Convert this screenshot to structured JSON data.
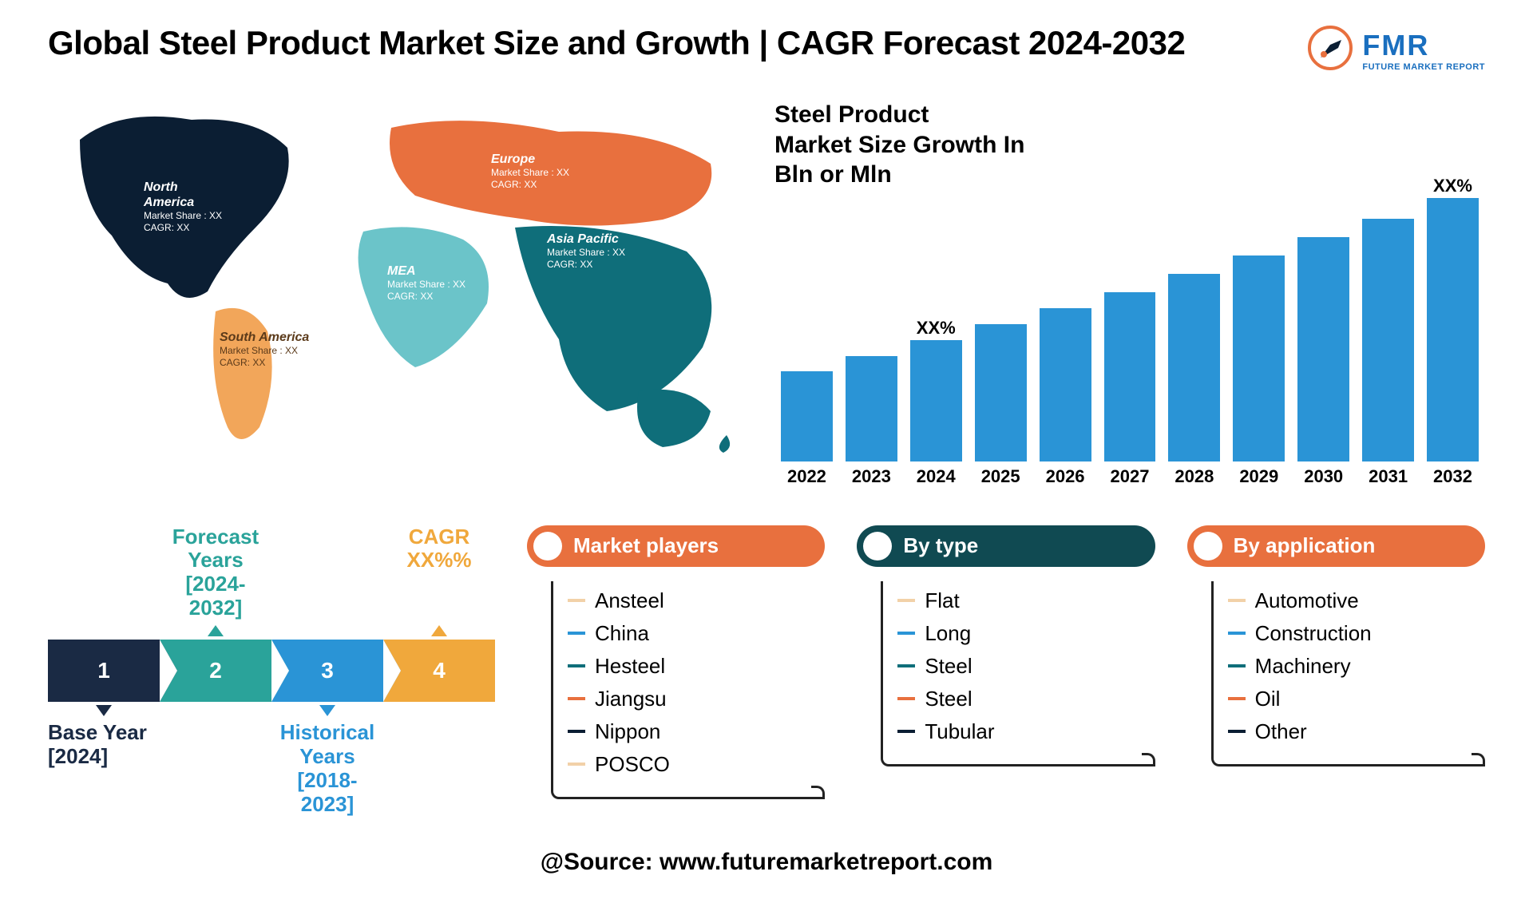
{
  "title": "Global Steel Product  Market Size and Growth | CAGR Forecast 2024-2032",
  "logo": {
    "fmr": "FMR",
    "sub": "FUTURE MARKET REPORT"
  },
  "colors": {
    "na": "#0b1e33",
    "sa": "#f2a65a",
    "eu": "#e8703e",
    "ap": "#0f6e7a",
    "mea": "#6bc4c9",
    "bar": "#2a94d6",
    "tl1": "#1a2a44",
    "tl2": "#2aa39a",
    "tl3": "#2a94d6",
    "tl4": "#f0a83c",
    "pill_players": "#e8703e",
    "pill_type": "#104a52",
    "pill_app": "#e8703e",
    "tick_blue": "#2a94d6",
    "tick_orange": "#e8703e",
    "tick_dark": "#0b1e33",
    "tick_teal": "#0f6e7a",
    "tick_light": "#f2d1a8"
  },
  "regions": {
    "na": {
      "name": "North\nAmerica",
      "share": "Market Share : XX",
      "cagr": "CAGR: XX"
    },
    "sa": {
      "name": "South America",
      "share": "Market Share : XX",
      "cagr": "CAGR: XX"
    },
    "eu": {
      "name": "Europe",
      "share": "Market Share : XX",
      "cagr": "CAGR: XX"
    },
    "ap": {
      "name": "Asia Pacific",
      "share": "Market Share : XX",
      "cagr": "CAGR: XX"
    },
    "mea": {
      "name": "MEA",
      "share": "Market Share : XX",
      "cagr": "CAGR: XX"
    }
  },
  "chart": {
    "title": "Steel Product\nMarket Size Growth In\nBln or Mln",
    "years": [
      "2022",
      "2023",
      "2024",
      "2025",
      "2026",
      "2027",
      "2028",
      "2029",
      "2030",
      "2031",
      "2032"
    ],
    "heights_pct": [
      34,
      40,
      46,
      52,
      58,
      64,
      71,
      78,
      85,
      92,
      100
    ],
    "note_2024": "XX%",
    "note_2032": "XX%"
  },
  "timeline": {
    "forecast": {
      "label": "Forecast Years",
      "range": "[2024-2032]",
      "color": "#2aa39a"
    },
    "cagr": {
      "label": "CAGR",
      "value": "XX%%",
      "color": "#f0a83c"
    },
    "base": {
      "label": "Base Year",
      "range": "[2024]",
      "color": "#1a2a44"
    },
    "hist": {
      "label": "Historical Years",
      "range": "[2018-2023]",
      "color": "#2a94d6"
    },
    "segs": [
      "1",
      "2",
      "3",
      "4"
    ]
  },
  "categories": {
    "players": {
      "title": "Market players",
      "items": [
        {
          "t": "Ansteel",
          "c": "#f2d1a8"
        },
        {
          "t": "China",
          "c": "#2a94d6"
        },
        {
          "t": "Hesteel",
          "c": "#0f6e7a"
        },
        {
          "t": "Jiangsu",
          "c": "#e8703e"
        },
        {
          "t": "Nippon",
          "c": "#0b1e33"
        },
        {
          "t": "POSCO",
          "c": "#f2d1a8"
        }
      ]
    },
    "type": {
      "title": "By type",
      "items": [
        {
          "t": "Flat",
          "c": "#f2d1a8"
        },
        {
          "t": "Long",
          "c": "#2a94d6"
        },
        {
          "t": "Steel",
          "c": "#0f6e7a"
        },
        {
          "t": "Steel",
          "c": "#e8703e"
        },
        {
          "t": "Tubular",
          "c": "#0b1e33"
        }
      ]
    },
    "app": {
      "title": "By application",
      "items": [
        {
          "t": "Automotive",
          "c": "#f2d1a8"
        },
        {
          "t": "Construction",
          "c": "#2a94d6"
        },
        {
          "t": "Machinery",
          "c": "#0f6e7a"
        },
        {
          "t": "Oil",
          "c": "#e8703e"
        },
        {
          "t": "Other",
          "c": "#0b1e33"
        }
      ]
    }
  },
  "source": "@Source: www.futuremarketreport.com"
}
